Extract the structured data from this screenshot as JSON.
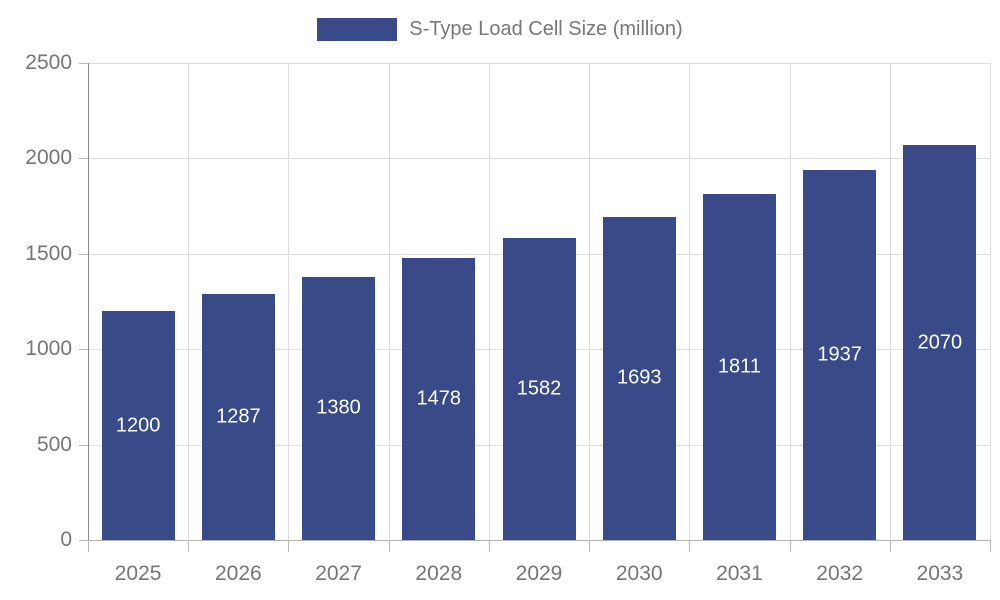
{
  "chart_data": {
    "type": "bar",
    "title": "S-Type Load Cell Size (million)",
    "categories": [
      "2025",
      "2026",
      "2027",
      "2028",
      "2029",
      "2030",
      "2031",
      "2032",
      "2033"
    ],
    "values": [
      1200,
      1287,
      1380,
      1478,
      1582,
      1693,
      1811,
      1937,
      2070
    ],
    "series_name": "S-Type Load Cell Size (million)",
    "xlabel": "",
    "ylabel": "",
    "ylim": [
      0,
      2500
    ],
    "yticks": [
      0,
      500,
      1000,
      1500,
      2000,
      2500
    ],
    "grid": true,
    "legend_position": "top-center",
    "value_labels": "inside-center",
    "colors": {
      "bar": "#384A87",
      "grid": "#dddddd",
      "y_axis": "#888888",
      "x_axis": "#b3b3b3",
      "tick": "#bbbbbb",
      "axis_text": "#757575",
      "legend_text": "#777777",
      "value_text": "#ffffff",
      "background": "#ffffff"
    }
  }
}
